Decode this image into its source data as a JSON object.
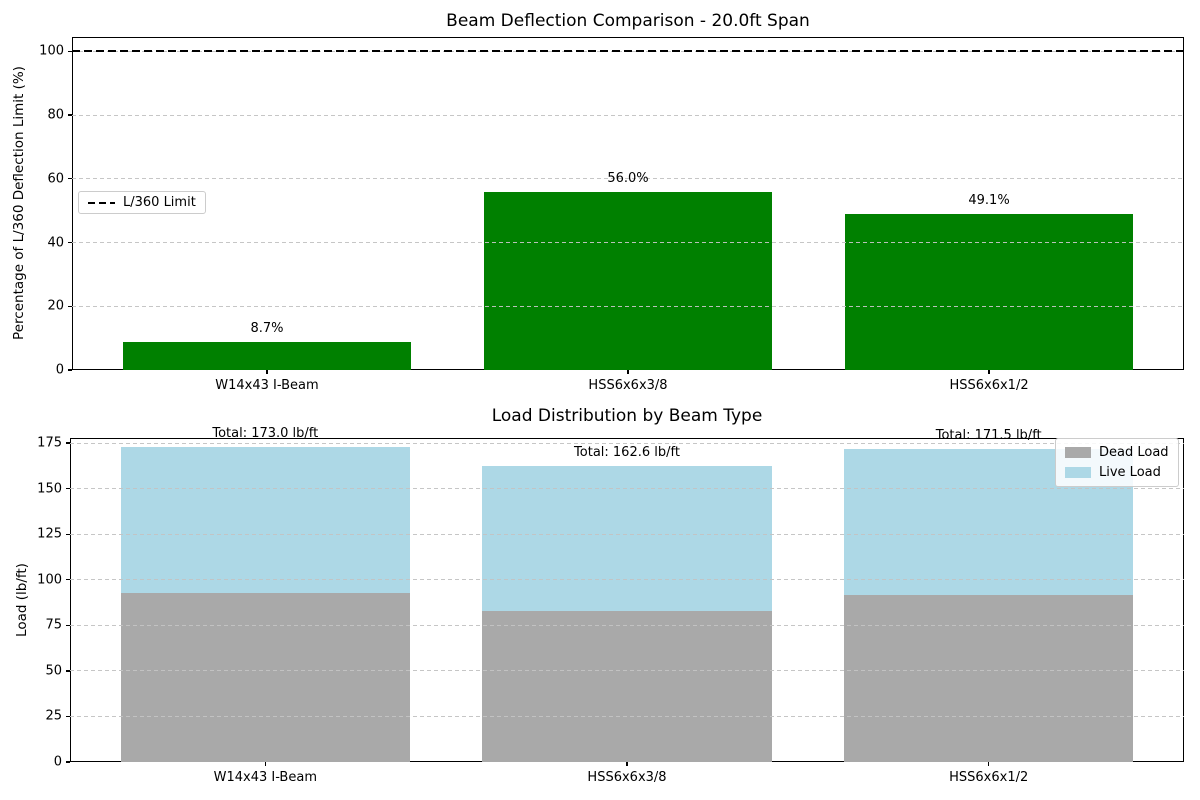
{
  "figure": {
    "background": "#ffffff",
    "spine_color": "#000000",
    "grid_color": "#c3c3c3"
  },
  "chart_data": [
    {
      "type": "bar",
      "title": "Beam Deflection Comparison - 20.0ft Span",
      "xlabel": "",
      "ylabel": "Percentage of L/360 Deflection Limit (%)",
      "categories": [
        "W14x43 I-Beam",
        "HSS6x6x3/8",
        "HSS6x6x1/2"
      ],
      "values": [
        8.7,
        56.0,
        49.1
      ],
      "bar_labels": [
        "8.7%",
        "56.0%",
        "49.1%"
      ],
      "bar_color": "#008000",
      "yticks": [
        0,
        20,
        40,
        60,
        80,
        100
      ],
      "ylim": [
        0,
        104.5
      ],
      "grid": "horizontal dashed",
      "reference_line": {
        "value": 100,
        "style": "dashed",
        "color": "#000000",
        "label": "L/360 Limit"
      },
      "legend": {
        "position": "center left",
        "entries": [
          {
            "label": "L/360 Limit",
            "marker": "dashed-black-line"
          }
        ]
      }
    },
    {
      "type": "stacked-bar",
      "title": "Load Distribution by Beam Type",
      "xlabel": "",
      "ylabel": "Load (lb/ft)",
      "categories": [
        "W14x43 I-Beam",
        "HSS6x6x3/8",
        "HSS6x6x1/2"
      ],
      "series": [
        {
          "name": "Dead Load",
          "color": "#A9A9A9",
          "values": [
            93.0,
            82.6,
            91.5
          ]
        },
        {
          "name": "Live Load",
          "color": "#ADD8E6",
          "values": [
            80.0,
            80.0,
            80.0
          ]
        }
      ],
      "totals": [
        173.0,
        162.6,
        171.5
      ],
      "total_labels": [
        "Total: 173.0 lb/ft",
        "Total: 162.6 lb/ft",
        "Total: 171.5 lb/ft"
      ],
      "yticks": [
        0,
        25,
        50,
        75,
        100,
        125,
        150,
        175
      ],
      "ylim": [
        0,
        177.8
      ],
      "grid": "horizontal dashed",
      "legend": {
        "position": "upper right",
        "entries": [
          {
            "label": "Dead Load",
            "color": "#A9A9A9"
          },
          {
            "label": "Live Load",
            "color": "#ADD8E6"
          }
        ]
      }
    }
  ]
}
